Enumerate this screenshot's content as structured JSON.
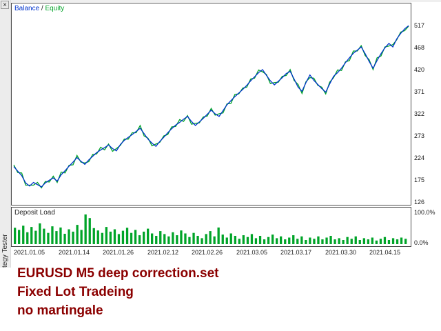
{
  "window": {
    "close_label": "×",
    "sidebar_tab": "tegy Tester"
  },
  "legend": {
    "balance": "Balance",
    "separator": " / ",
    "equity": "Equity"
  },
  "deposit_panel": {
    "title": "Deposit Load",
    "y_max_label": "100.0%",
    "y_min_label": "0.0%"
  },
  "caption_lines": [
    "EURUSD M5 deep correction.set",
    "Fixed Lot Tradeing",
    "no martingale"
  ],
  "colors": {
    "balance_line": "#0033cc",
    "equity_line": "#00a428",
    "deposit_bar": "#00a428",
    "caption_text": "#8b0000",
    "panel_border": "#4a4a4a"
  },
  "chart_data": [
    {
      "type": "line",
      "title": "Balance / Equity",
      "legend_position": "top-left",
      "grid": false,
      "ylim": [
        126,
        517
      ],
      "y_ticks": [
        517,
        468,
        420,
        371,
        322,
        273,
        224,
        175,
        126
      ],
      "x_tick_labels": [
        "2021.01.05",
        "2021.01.14",
        "2021.01.26",
        "2021.02.12",
        "2021.02.26",
        "2021.03.05",
        "2021.03.17",
        "2021.03.30",
        "2021.04.15"
      ],
      "series": [
        {
          "name": "Balance",
          "color": "#0033cc",
          "values": [
            206,
            196,
            186,
            170,
            163,
            171,
            166,
            161,
            170,
            176,
            181,
            174,
            188,
            197,
            207,
            216,
            226,
            218,
            211,
            221,
            229,
            237,
            243,
            248,
            254,
            246,
            241,
            255,
            264,
            271,
            277,
            284,
            291,
            279,
            267,
            258,
            251,
            262,
            271,
            281,
            290,
            298,
            304,
            311,
            317,
            306,
            297,
            305,
            313,
            322,
            331,
            323,
            317,
            330,
            343,
            352,
            361,
            369,
            377,
            386,
            396,
            405,
            414,
            421,
            408,
            396,
            387,
            395,
            403,
            412,
            417,
            400,
            382,
            373,
            392,
            409,
            397,
            388,
            379,
            371,
            389,
            406,
            414,
            424,
            436,
            447,
            457,
            464,
            471,
            456,
            439,
            424,
            441,
            456,
            469,
            479,
            471,
            489,
            501,
            511,
            518
          ]
        },
        {
          "name": "Equity",
          "color": "#00a428",
          "values": [
            210,
            193,
            192,
            165,
            165,
            165,
            171,
            159,
            173,
            172,
            185,
            171,
            194,
            192,
            209,
            210,
            231,
            216,
            214,
            217,
            233,
            234,
            249,
            243,
            256,
            240,
            246,
            253,
            267,
            267,
            281,
            281,
            297,
            274,
            269,
            252,
            256,
            260,
            274,
            277,
            294,
            295,
            310,
            306,
            319,
            300,
            302,
            303,
            316,
            318,
            335,
            320,
            323,
            325,
            345,
            346,
            366,
            367,
            380,
            382,
            400,
            402,
            420,
            416,
            410,
            390,
            392,
            393,
            406,
            408,
            421,
            397,
            388,
            368,
            394,
            403,
            402,
            386,
            382,
            367,
            393,
            403,
            420,
            419,
            438,
            441,
            462,
            462,
            474,
            452,
            443,
            421,
            447,
            451,
            471,
            473,
            476,
            487,
            504,
            507,
            517
          ]
        }
      ]
    },
    {
      "type": "bar",
      "title": "Deposit Load",
      "color": "#00a428",
      "unit": "%",
      "ylim": [
        0,
        100
      ],
      "y_tick_labels": [
        "100.0%",
        "0.0%"
      ],
      "values": [
        55,
        48,
        62,
        40,
        58,
        45,
        70,
        52,
        38,
        60,
        44,
        56,
        35,
        50,
        42,
        65,
        48,
        100,
        88,
        54,
        46,
        38,
        58,
        42,
        50,
        34,
        45,
        55,
        38,
        48,
        30,
        42,
        52,
        36,
        28,
        44,
        34,
        26,
        40,
        30,
        46,
        36,
        24,
        38,
        28,
        20,
        34,
        44,
        26,
        56,
        32,
        22,
        36,
        28,
        18,
        30,
        24,
        34,
        20,
        28,
        16,
        24,
        32,
        20,
        26,
        16,
        22,
        30,
        18,
        26,
        14,
        22,
        18,
        26,
        16,
        22,
        28,
        16,
        20,
        14,
        24,
        18,
        26,
        14,
        20,
        16,
        22,
        12,
        18,
        24,
        14,
        20,
        16,
        22,
        18
      ]
    }
  ]
}
